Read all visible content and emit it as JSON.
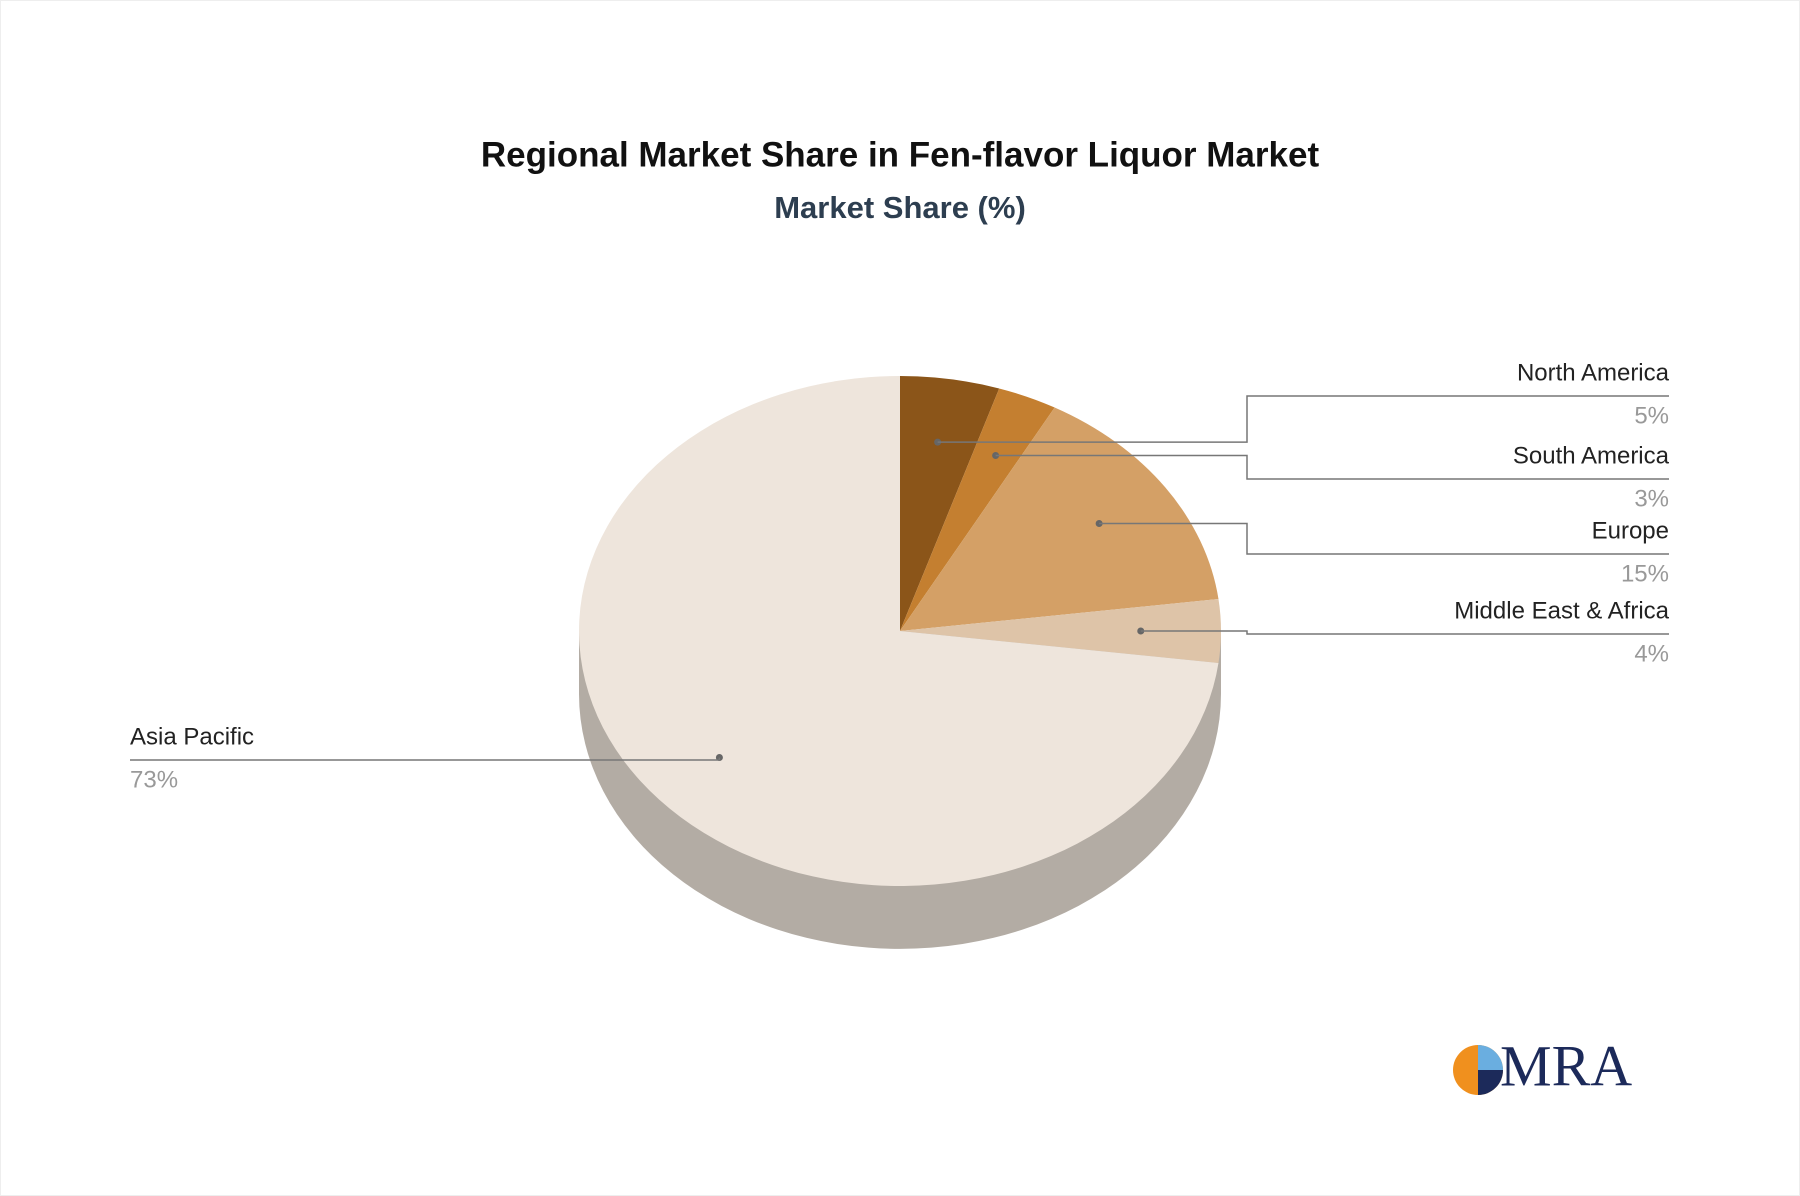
{
  "chart_data": {
    "type": "pie",
    "title": "Regional Market Share in Fen-flavor Liquor Market",
    "subtitle": "Market Share (%)",
    "categories": [
      "North America",
      "South America",
      "Europe",
      "Middle East & Africa",
      "Asia Pacific"
    ],
    "values": [
      5,
      3,
      15,
      4,
      73
    ],
    "value_labels": [
      "5%",
      "3%",
      "15%",
      "4%",
      "73%"
    ],
    "colors": [
      "#8b5519",
      "#c47f30",
      "#d4a066",
      "#dec4a8",
      "#eee5dc"
    ],
    "side_color": "#b3aca4"
  },
  "logo": "MRA"
}
